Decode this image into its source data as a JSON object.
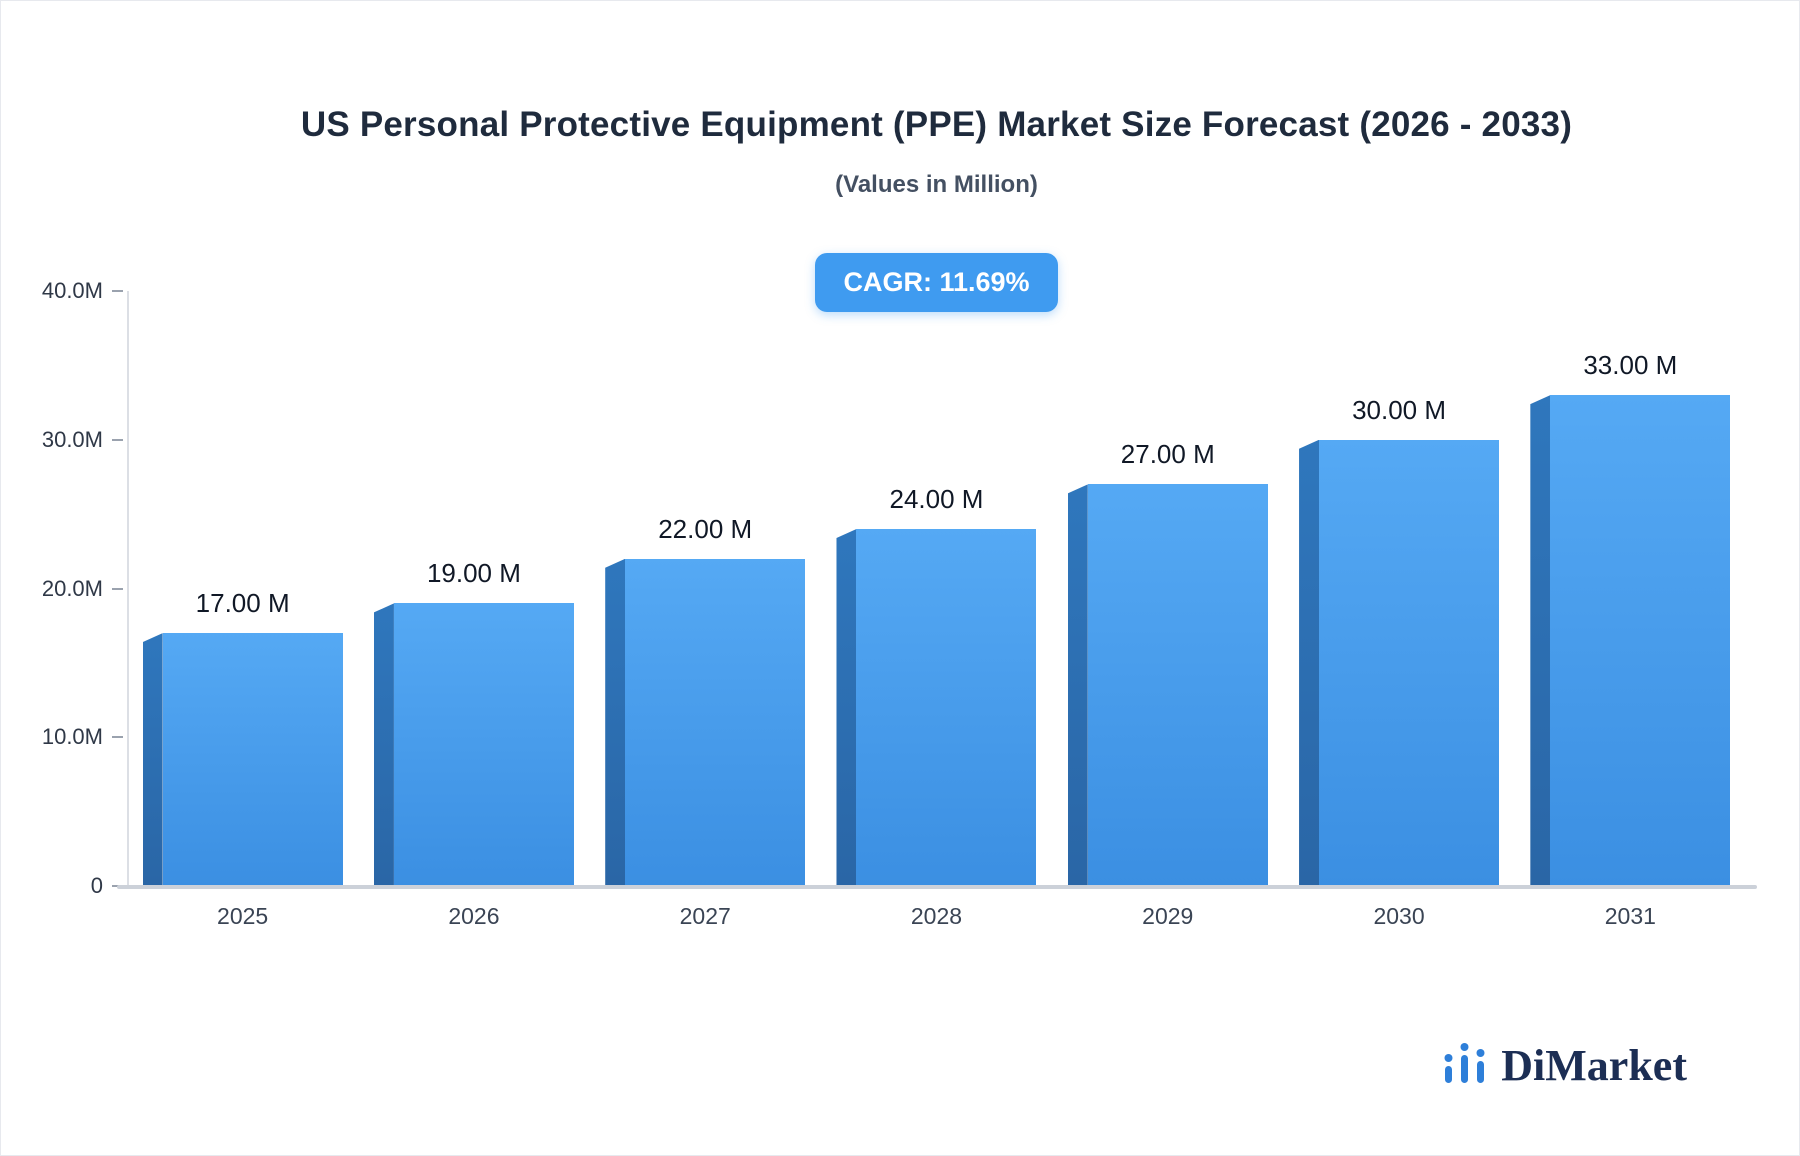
{
  "header": {
    "title": "US Personal Protective Equipment (PPE) Market Size Forecast (2026 - 2033)",
    "subtitle": "(Values in Million)",
    "cagr_badge": "CAGR: 11.69%"
  },
  "chart_data": {
    "type": "bar",
    "title": "US Personal Protective Equipment (PPE) Market Size Forecast (2026 - 2033)",
    "subtitle": "(Values in Million)",
    "categories": [
      "2025",
      "2026",
      "2027",
      "2028",
      "2029",
      "2030",
      "2031"
    ],
    "values": [
      17,
      19,
      22,
      24,
      27,
      30,
      33
    ],
    "value_labels": [
      "17.00 M",
      "19.00 M",
      "22.00 M",
      "24.00 M",
      "27.00 M",
      "30.00 M",
      "33.00 M"
    ],
    "annotation": "CAGR: 11.69%",
    "xlabel": "",
    "ylabel": "",
    "ylim": [
      0,
      40
    ],
    "yticks": [
      0,
      10,
      20,
      30,
      40
    ],
    "ytick_labels": [
      "0",
      "10.0M",
      "20.0M",
      "30.0M",
      "40.0M"
    ],
    "grid": false,
    "legend": "none",
    "bar_color": "#3F9BF0",
    "bar_side_color": "#2B6FB4"
  },
  "branding": {
    "logo_text": "DiMarket",
    "logo_icon": "bar-chart-logo-icon",
    "logo_text_color": "#1C2E54",
    "logo_icon_color": "#2E7FD9"
  },
  "colors": {
    "accent_blue": "#3F9BF0",
    "title_text": "#1F2B3D",
    "axis_text": "#2F3847",
    "background": "#FFFFFF"
  }
}
